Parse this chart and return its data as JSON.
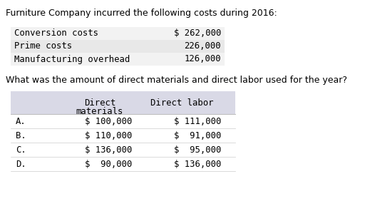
{
  "title": "Furniture Company incurred the following costs during 2016:",
  "cost_items": [
    {
      "label": "Conversion costs",
      "value": "$ 262,000"
    },
    {
      "label": "Prime costs",
      "value": "226,000"
    },
    {
      "label": "Manufacturing overhead",
      "value": "126,000"
    }
  ],
  "cost_row_colors": [
    "#f2f2f2",
    "#e8e8e8",
    "#f2f2f2"
  ],
  "question": "What was the amount of direct materials and direct labor used for the year?",
  "table_header_col1_line1": "Direct",
  "table_header_col1_line2": "materials",
  "table_header_col2": "Direct labor",
  "table_header_bg": "#d9d9e6",
  "table_rows": [
    {
      "letter": "A.",
      "dm": "$ 100,000",
      "dl": "$ 111,000"
    },
    {
      "letter": "B.",
      "dm": "$ 110,000",
      "dl": "$  91,000"
    },
    {
      "letter": "C.",
      "dm": "$ 136,000",
      "dl": "$  95,000"
    },
    {
      "letter": "D.",
      "dm": "$  90,000",
      "dl": "$ 136,000"
    }
  ],
  "bg_color": "#ffffff",
  "title_font": "sans-serif",
  "mono_font": "monospace",
  "title_fs": 9.0,
  "body_fs": 8.8
}
